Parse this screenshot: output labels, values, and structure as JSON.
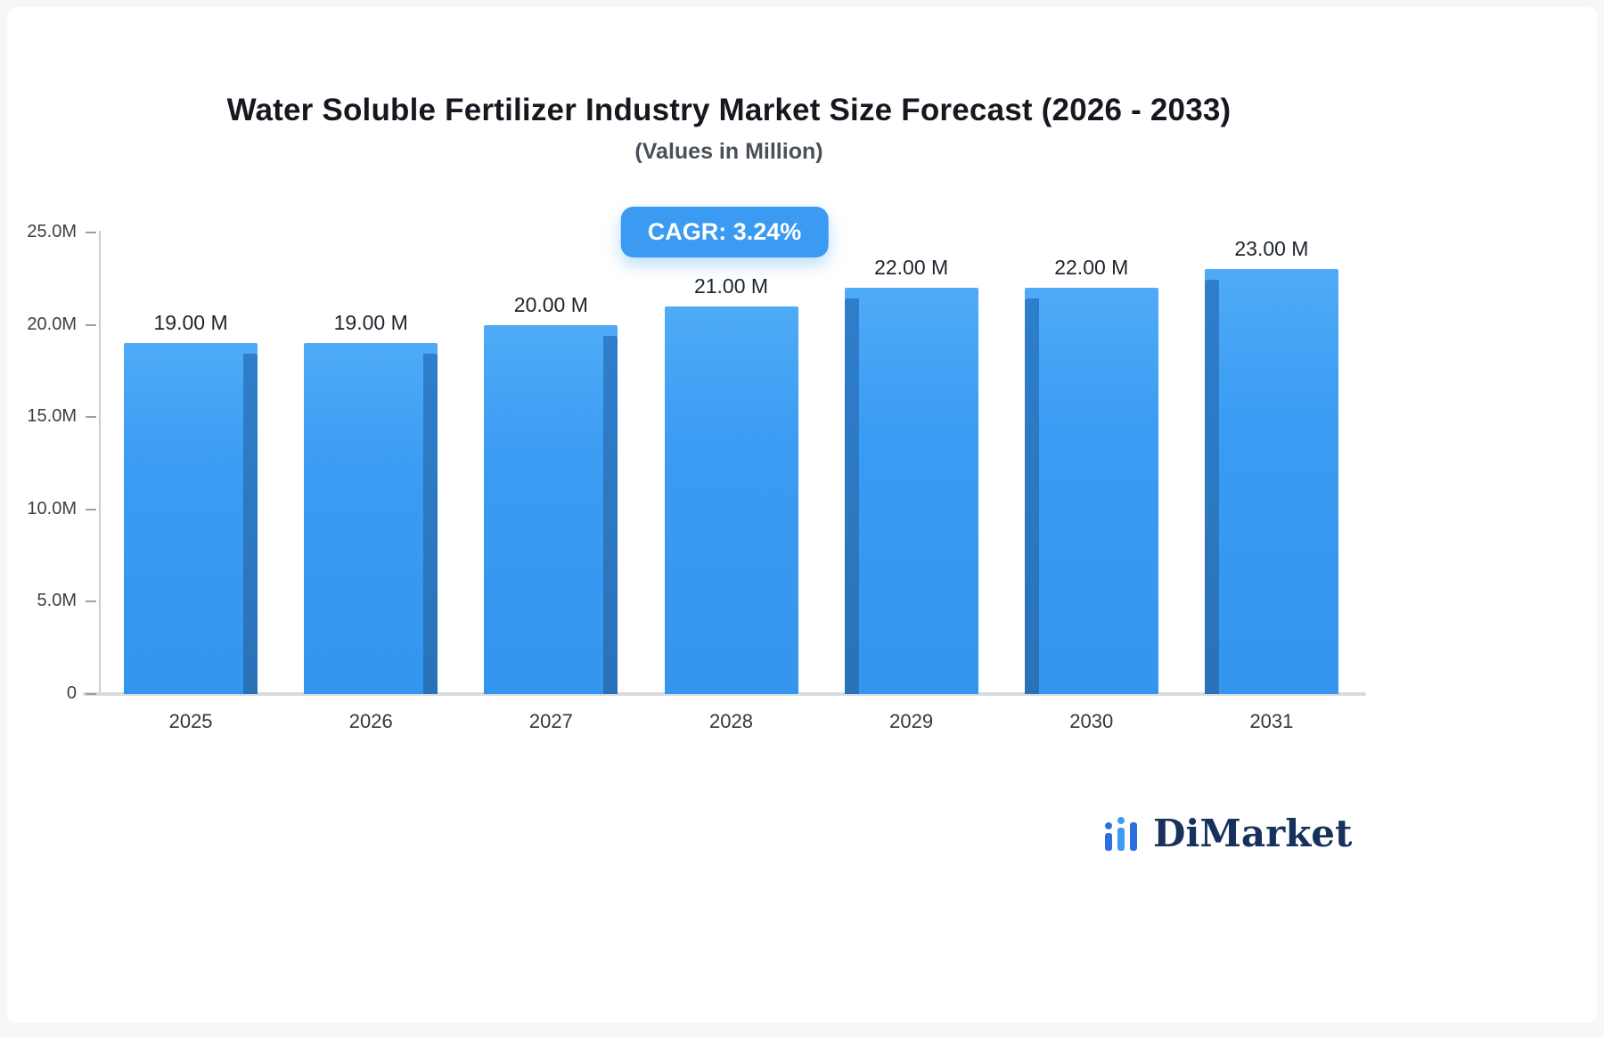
{
  "header": {
    "title": "Water Soluble Fertilizer Industry Market Size Forecast (2026 - 2033)",
    "subtitle": "(Values in Million)"
  },
  "badge": {
    "label": "CAGR: 3.24%"
  },
  "logo": {
    "text": "DiMarket"
  },
  "colors": {
    "bar_main": "#3b9cf3",
    "bar_side": "#2a72b8",
    "badge_bg": "#3b9af2",
    "logo_blue": "#2e6fdf",
    "logo_text": "#16325c"
  },
  "chart_data": {
    "type": "bar",
    "title": "Water Soluble Fertilizer Industry Market Size Forecast (2026 - 2033)",
    "subtitle": "(Values in Million)",
    "unit": "Million",
    "categories": [
      "2025",
      "2026",
      "2027",
      "2028",
      "2029",
      "2030",
      "2031"
    ],
    "values": [
      19,
      19,
      20,
      21,
      22,
      22,
      23
    ],
    "value_labels": [
      "19.00 M",
      "19.00 M",
      "20.00 M",
      "21.00 M",
      "22.00 M",
      "22.00 M",
      "23.00 M"
    ],
    "xlabel": "",
    "ylabel": "",
    "ylim": [
      0,
      25
    ],
    "yticks": [
      {
        "value": 0,
        "label": "0"
      },
      {
        "value": 5,
        "label": "5.0M"
      },
      {
        "value": 10,
        "label": "10.0M"
      },
      {
        "value": 15,
        "label": "15.0M"
      },
      {
        "value": 20,
        "label": "20.0M"
      },
      {
        "value": 25,
        "label": "25.0M"
      }
    ],
    "grid": false,
    "legend": "none",
    "annotations": [
      "CAGR: 3.24%"
    ]
  }
}
